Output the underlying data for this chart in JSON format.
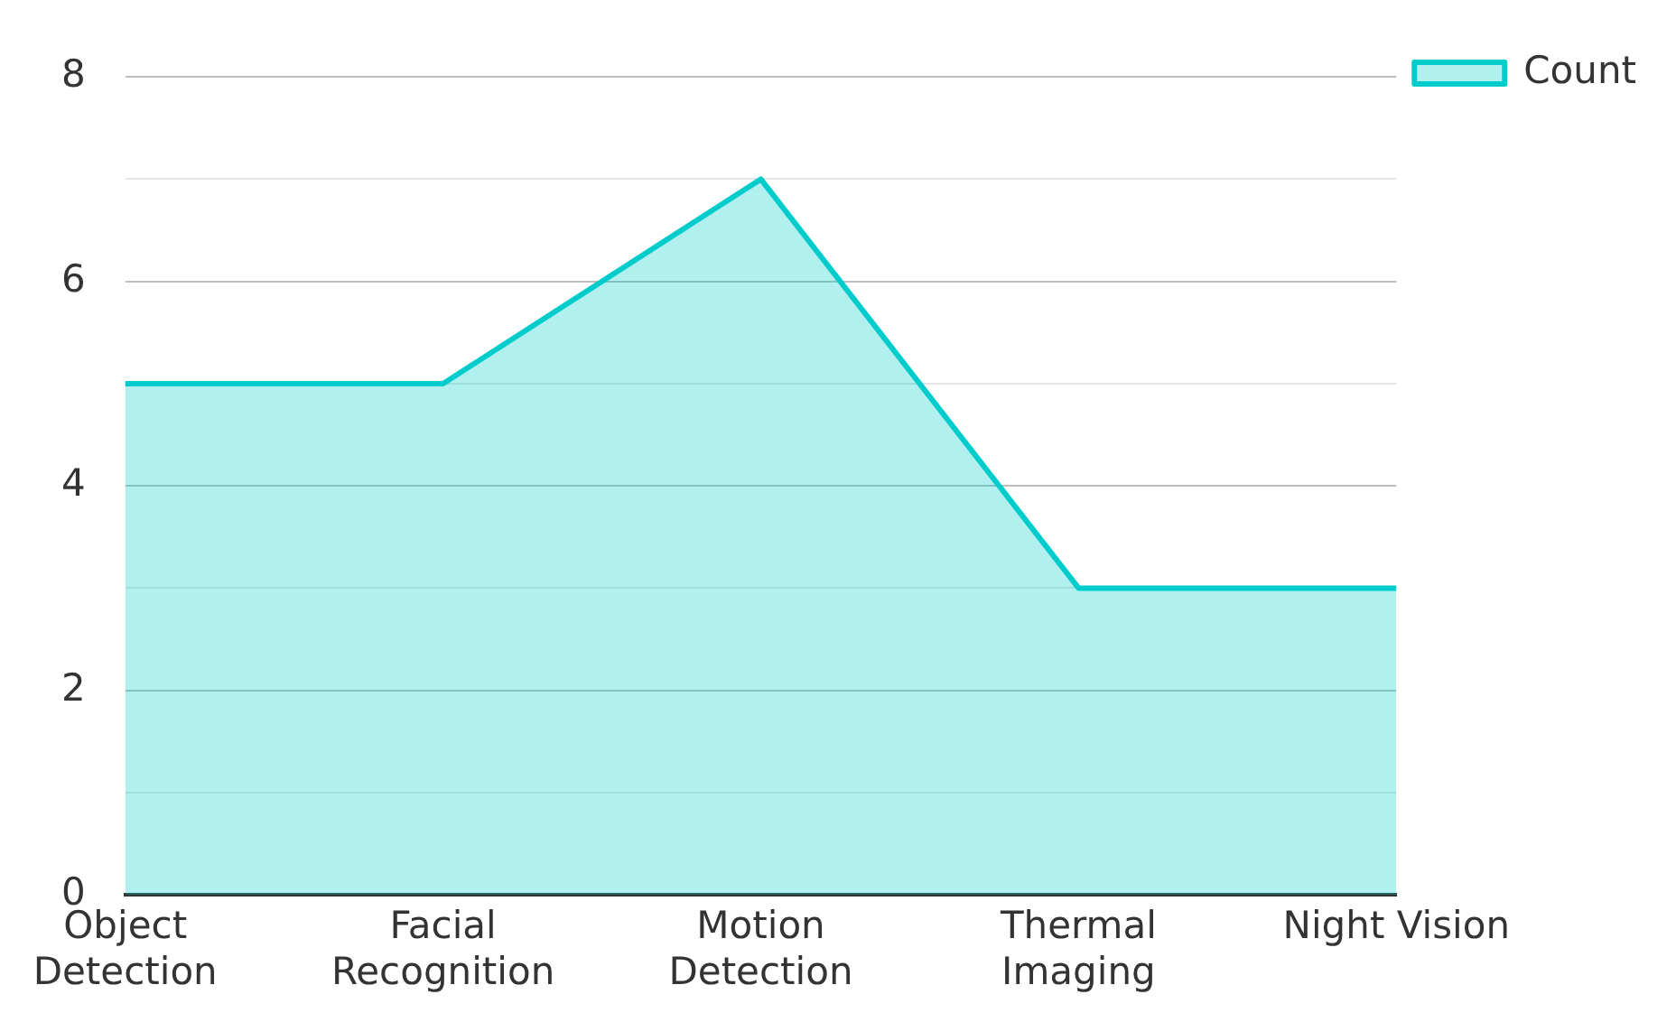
{
  "chart_data": {
    "type": "area",
    "categories": [
      "Object Detection",
      "Facial Recognition",
      "Motion Detection",
      "Thermal Imaging",
      "Night Vision"
    ],
    "series": [
      {
        "name": "Count",
        "color": "#00cccc",
        "values": [
          5,
          5,
          7,
          3,
          3
        ]
      }
    ],
    "ylim": [
      0,
      8
    ],
    "yticks": [
      0,
      {
        "value": 1,
        "label": null
      },
      2,
      {
        "value": 3,
        "label": null
      },
      4,
      {
        "value": 5,
        "label": null
      },
      6,
      {
        "value": 7,
        "label": null
      },
      8
    ],
    "grid": "y",
    "legend": "top right"
  }
}
